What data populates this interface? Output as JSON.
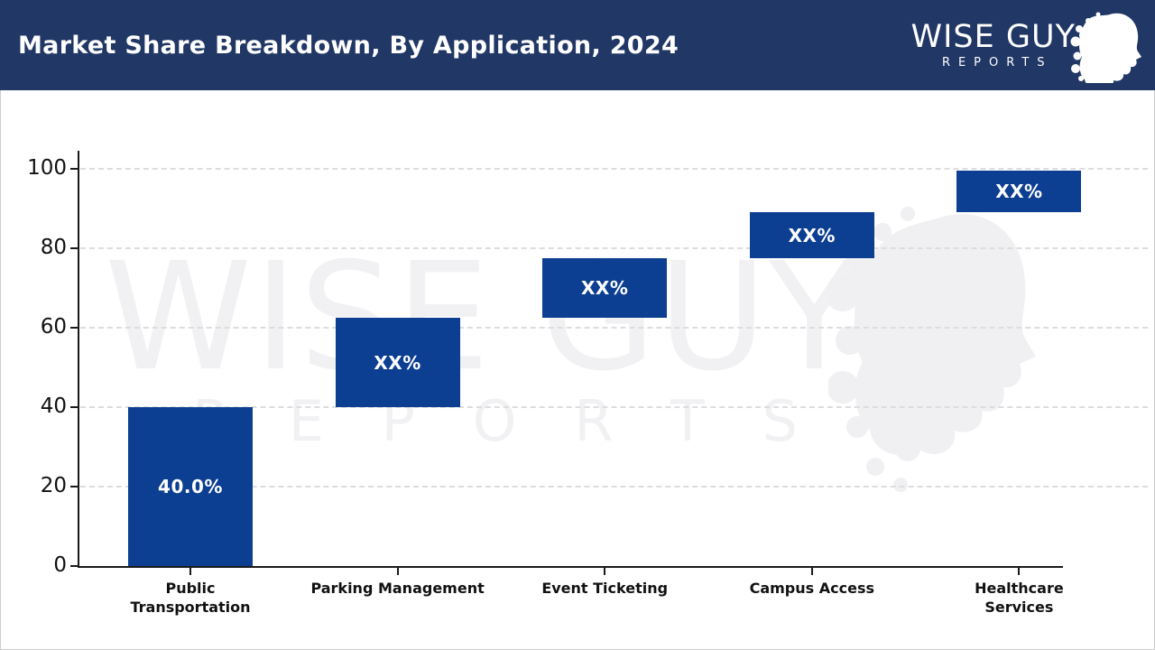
{
  "header": {
    "title": "Market Share Breakdown, By Application, 2024",
    "logo": {
      "line1": "WISE GUY",
      "line2": "REPORTS"
    }
  },
  "watermark": {
    "line1": "WISE GUY",
    "line2": "R E P O R T S"
  },
  "colors": {
    "header_bg": "#213765",
    "bar_blue": "#0c3e92",
    "bar_label": "#ffffff",
    "gridline": "#dddddd",
    "axis": "#1a1a1a",
    "watermark": "#f1f1f4",
    "frame_border": "#cccccc"
  },
  "chart_data": {
    "type": "bar",
    "subtype": "waterfall",
    "title": "Market Share Breakdown, By Application, 2024",
    "xlabel": "",
    "ylabel": "",
    "categories": [
      "Public\nTransportation",
      "Parking Management",
      "Event Ticketing",
      "Campus Access",
      "Healthcare\nServices"
    ],
    "segments": [
      {
        "category": "Public Transportation",
        "start": 0,
        "end": 40,
        "label": "40.0%"
      },
      {
        "category": "Parking Management",
        "start": 40,
        "end": 62.5,
        "label": "XX%"
      },
      {
        "category": "Event Ticketing",
        "start": 62.5,
        "end": 77.5,
        "label": "XX%"
      },
      {
        "category": "Campus Access",
        "start": 77.5,
        "end": 89,
        "label": "XX%"
      },
      {
        "category": "Healthcare Services",
        "start": 89,
        "end": 99.5,
        "label": "XX%"
      }
    ],
    "yticks": [
      0,
      20,
      40,
      60,
      80,
      100
    ],
    "ylim": [
      0,
      104.5
    ],
    "grid": "horizontal dashed",
    "legend": "none",
    "bar_color": "#0c3e92",
    "value_label_color": "#ffffff"
  }
}
